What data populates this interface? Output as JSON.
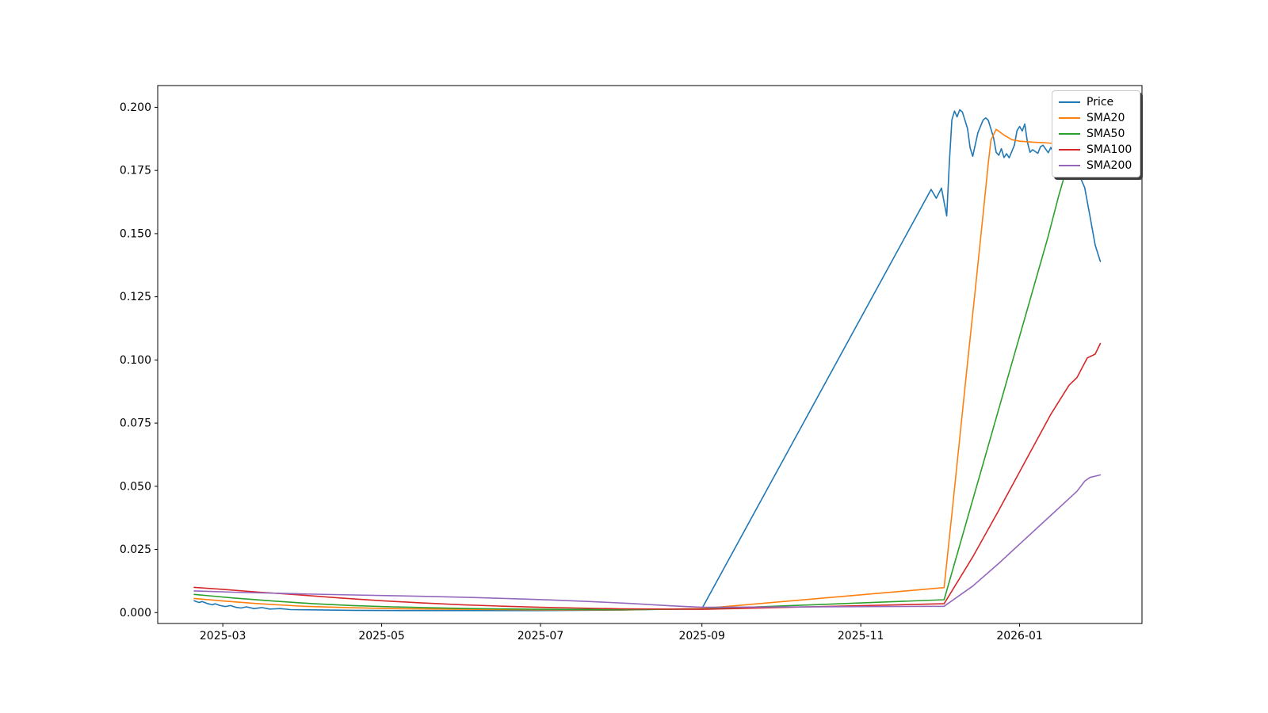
{
  "chart_data": {
    "type": "line",
    "title": "",
    "xlabel": "",
    "ylabel": "",
    "grid": false,
    "x_axis": {
      "lim": [
        "2025-02-04",
        "2026-02-17"
      ],
      "ticks": [
        {
          "label": "2025-03",
          "date": "2025-03-01"
        },
        {
          "label": "2025-05",
          "date": "2025-05-01"
        },
        {
          "label": "2025-07",
          "date": "2025-07-01"
        },
        {
          "label": "2025-09",
          "date": "2025-09-01"
        },
        {
          "label": "2025-11",
          "date": "2025-11-01"
        },
        {
          "label": "2026-01",
          "date": "2026-01-01"
        }
      ]
    },
    "y_axis": {
      "lim": [
        -0.0043,
        0.2086
      ],
      "ticks": [
        {
          "label": "0.000",
          "value": 0.0
        },
        {
          "label": "0.025",
          "value": 0.025
        },
        {
          "label": "0.050",
          "value": 0.05
        },
        {
          "label": "0.075",
          "value": 0.075
        },
        {
          "label": "0.100",
          "value": 0.1
        },
        {
          "label": "0.125",
          "value": 0.125
        },
        {
          "label": "0.150",
          "value": 0.15
        },
        {
          "label": "0.175",
          "value": 0.175
        },
        {
          "label": "0.200",
          "value": 0.2
        }
      ]
    },
    "legend": {
      "position": "upper-right",
      "shadow": true,
      "entries": [
        "Price",
        "SMA20",
        "SMA50",
        "SMA100",
        "SMA200"
      ]
    },
    "series": [
      {
        "name": "Price",
        "color": "#1f77b4",
        "points": [
          [
            "2025-02-18",
            0.0047
          ],
          [
            "2025-02-19",
            0.0043
          ],
          [
            "2025-02-20",
            0.004
          ],
          [
            "2025-02-21",
            0.0044
          ],
          [
            "2025-02-23",
            0.0036
          ],
          [
            "2025-02-25",
            0.0031
          ],
          [
            "2025-02-26",
            0.0035
          ],
          [
            "2025-02-28",
            0.0028
          ],
          [
            "2025-03-02",
            0.0024
          ],
          [
            "2025-03-04",
            0.0028
          ],
          [
            "2025-03-06",
            0.0021
          ],
          [
            "2025-03-08",
            0.0018
          ],
          [
            "2025-03-10",
            0.0023
          ],
          [
            "2025-03-13",
            0.0016
          ],
          [
            "2025-03-16",
            0.002
          ],
          [
            "2025-03-19",
            0.0014
          ],
          [
            "2025-03-23",
            0.0016
          ],
          [
            "2025-03-27",
            0.0012
          ],
          [
            "2025-04-05",
            0.0011
          ],
          [
            "2025-04-20",
            0.0009
          ],
          [
            "2025-05-10",
            0.0008
          ],
          [
            "2025-06-01",
            0.0008
          ],
          [
            "2025-07-01",
            0.0008
          ],
          [
            "2025-08-01",
            0.001
          ],
          [
            "2025-09-01",
            0.0016
          ],
          [
            "2025-11-28",
            0.1675
          ],
          [
            "2025-11-30",
            0.164
          ],
          [
            "2025-12-02",
            0.168
          ],
          [
            "2025-12-04",
            0.157
          ],
          [
            "2025-12-05",
            0.178
          ],
          [
            "2025-12-06",
            0.195
          ],
          [
            "2025-12-07",
            0.1985
          ],
          [
            "2025-12-08",
            0.1962
          ],
          [
            "2025-12-09",
            0.199
          ],
          [
            "2025-12-10",
            0.1982
          ],
          [
            "2025-12-12",
            0.1915
          ],
          [
            "2025-12-13",
            0.184
          ],
          [
            "2025-12-14",
            0.1806
          ],
          [
            "2025-12-16",
            0.19
          ],
          [
            "2025-12-18",
            0.195
          ],
          [
            "2025-12-19",
            0.1958
          ],
          [
            "2025-12-20",
            0.1948
          ],
          [
            "2025-12-22",
            0.188
          ],
          [
            "2025-12-23",
            0.1822
          ],
          [
            "2025-12-24",
            0.181
          ],
          [
            "2025-12-25",
            0.1836
          ],
          [
            "2025-12-26",
            0.1801
          ],
          [
            "2025-12-27",
            0.1816
          ],
          [
            "2025-12-28",
            0.18
          ],
          [
            "2025-12-30",
            0.185
          ],
          [
            "2025-12-31",
            0.1908
          ],
          [
            "2026-01-01",
            0.1924
          ],
          [
            "2026-01-02",
            0.1906
          ],
          [
            "2026-01-03",
            0.1934
          ],
          [
            "2026-01-04",
            0.1862
          ],
          [
            "2026-01-05",
            0.1822
          ],
          [
            "2026-01-06",
            0.1832
          ],
          [
            "2026-01-08",
            0.1818
          ],
          [
            "2026-01-09",
            0.1844
          ],
          [
            "2026-01-10",
            0.185
          ],
          [
            "2026-01-12",
            0.182
          ],
          [
            "2026-01-13",
            0.1841
          ],
          [
            "2026-01-15",
            0.18
          ],
          [
            "2026-01-18",
            0.1788
          ],
          [
            "2026-01-21",
            0.1778
          ],
          [
            "2026-01-24",
            0.173
          ],
          [
            "2026-01-26",
            0.1682
          ],
          [
            "2026-01-28",
            0.157
          ],
          [
            "2026-01-30",
            0.1455
          ],
          [
            "2026-02-01",
            0.139
          ]
        ]
      },
      {
        "name": "SMA20",
        "color": "#ff7f0e",
        "points": [
          [
            "2025-02-18",
            0.0056
          ],
          [
            "2025-03-01",
            0.0046
          ],
          [
            "2025-03-15",
            0.0035
          ],
          [
            "2025-04-01",
            0.0025
          ],
          [
            "2025-04-20",
            0.0019
          ],
          [
            "2025-05-10",
            0.0015
          ],
          [
            "2025-06-01",
            0.0013
          ],
          [
            "2025-07-01",
            0.0011
          ],
          [
            "2025-08-01",
            0.0011
          ],
          [
            "2025-09-01",
            0.0016
          ],
          [
            "2025-12-03",
            0.0099
          ],
          [
            "2025-12-06",
            0.039
          ],
          [
            "2025-12-09",
            0.069
          ],
          [
            "2025-12-12",
            0.099
          ],
          [
            "2025-12-15",
            0.128
          ],
          [
            "2025-12-18",
            0.158
          ],
          [
            "2025-12-20",
            0.178
          ],
          [
            "2025-12-21",
            0.187
          ],
          [
            "2025-12-23",
            0.1913
          ],
          [
            "2025-12-26",
            0.189
          ],
          [
            "2025-12-29",
            0.1872
          ],
          [
            "2026-01-01",
            0.1866
          ],
          [
            "2026-01-06",
            0.1862
          ],
          [
            "2026-01-10",
            0.186
          ],
          [
            "2026-01-14",
            0.1857
          ],
          [
            "2026-01-18",
            0.1852
          ],
          [
            "2026-01-22",
            0.1848
          ],
          [
            "2026-01-26",
            0.1845
          ],
          [
            "2026-02-01",
            0.184
          ]
        ]
      },
      {
        "name": "SMA50",
        "color": "#2ca02c",
        "points": [
          [
            "2025-02-18",
            0.0072
          ],
          [
            "2025-03-05",
            0.0058
          ],
          [
            "2025-03-20",
            0.0046
          ],
          [
            "2025-04-05",
            0.0035
          ],
          [
            "2025-04-20",
            0.0028
          ],
          [
            "2025-05-05",
            0.0023
          ],
          [
            "2025-05-20",
            0.0019
          ],
          [
            "2025-06-05",
            0.0016
          ],
          [
            "2025-07-01",
            0.0013
          ],
          [
            "2025-08-01",
            0.0012
          ],
          [
            "2025-09-01",
            0.0014
          ],
          [
            "2025-12-03",
            0.0051
          ],
          [
            "2025-12-08",
            0.023
          ],
          [
            "2025-12-13",
            0.041
          ],
          [
            "2025-12-18",
            0.059
          ],
          [
            "2025-12-23",
            0.077
          ],
          [
            "2025-12-28",
            0.095
          ],
          [
            "2026-01-02",
            0.113
          ],
          [
            "2026-01-07",
            0.131
          ],
          [
            "2026-01-12",
            0.149
          ],
          [
            "2026-01-16",
            0.165
          ],
          [
            "2026-01-18",
            0.172
          ],
          [
            "2026-01-21",
            0.18
          ],
          [
            "2026-01-24",
            0.184
          ],
          [
            "2026-01-28",
            0.1856
          ],
          [
            "2026-02-01",
            0.1862
          ]
        ]
      },
      {
        "name": "SMA100",
        "color": "#d62728",
        "points": [
          [
            "2025-02-18",
            0.01
          ],
          [
            "2025-03-01",
            0.0092
          ],
          [
            "2025-03-15",
            0.0081
          ],
          [
            "2025-03-29",
            0.0071
          ],
          [
            "2025-04-15",
            0.0058
          ],
          [
            "2025-05-01",
            0.0047
          ],
          [
            "2025-05-15",
            0.0039
          ],
          [
            "2025-06-01",
            0.0031
          ],
          [
            "2025-06-15",
            0.0026
          ],
          [
            "2025-07-01",
            0.0021
          ],
          [
            "2025-07-15",
            0.0018
          ],
          [
            "2025-08-01",
            0.0015
          ],
          [
            "2025-09-01",
            0.0013
          ],
          [
            "2025-12-03",
            0.0035
          ],
          [
            "2025-12-14",
            0.022
          ],
          [
            "2025-12-24",
            0.0405
          ],
          [
            "2026-01-03",
            0.0595
          ],
          [
            "2026-01-13",
            0.0785
          ],
          [
            "2026-01-20",
            0.09
          ],
          [
            "2026-01-23",
            0.093
          ],
          [
            "2026-01-27",
            0.1008
          ],
          [
            "2026-01-29",
            0.1018
          ],
          [
            "2026-01-30",
            0.1023
          ],
          [
            "2026-02-01",
            0.1065
          ]
        ]
      },
      {
        "name": "SMA200",
        "color": "#9467bd",
        "points": [
          [
            "2025-02-18",
            0.0086
          ],
          [
            "2025-03-05",
            0.0081
          ],
          [
            "2025-03-20",
            0.0077
          ],
          [
            "2025-04-05",
            0.0073
          ],
          [
            "2025-04-20",
            0.007
          ],
          [
            "2025-05-05",
            0.0067
          ],
          [
            "2025-05-20",
            0.0064
          ],
          [
            "2025-06-05",
            0.006
          ],
          [
            "2025-06-20",
            0.0055
          ],
          [
            "2025-07-05",
            0.005
          ],
          [
            "2025-07-20",
            0.0044
          ],
          [
            "2025-08-05",
            0.0036
          ],
          [
            "2025-08-20",
            0.0027
          ],
          [
            "2025-09-01",
            0.0021
          ],
          [
            "2025-12-03",
            0.0025
          ],
          [
            "2025-12-14",
            0.0105
          ],
          [
            "2025-12-24",
            0.0195
          ],
          [
            "2026-01-03",
            0.029
          ],
          [
            "2026-01-13",
            0.0385
          ],
          [
            "2026-01-23",
            0.048
          ],
          [
            "2026-01-26",
            0.052
          ],
          [
            "2026-01-28",
            0.0535
          ],
          [
            "2026-02-01",
            0.0545
          ]
        ]
      }
    ]
  }
}
